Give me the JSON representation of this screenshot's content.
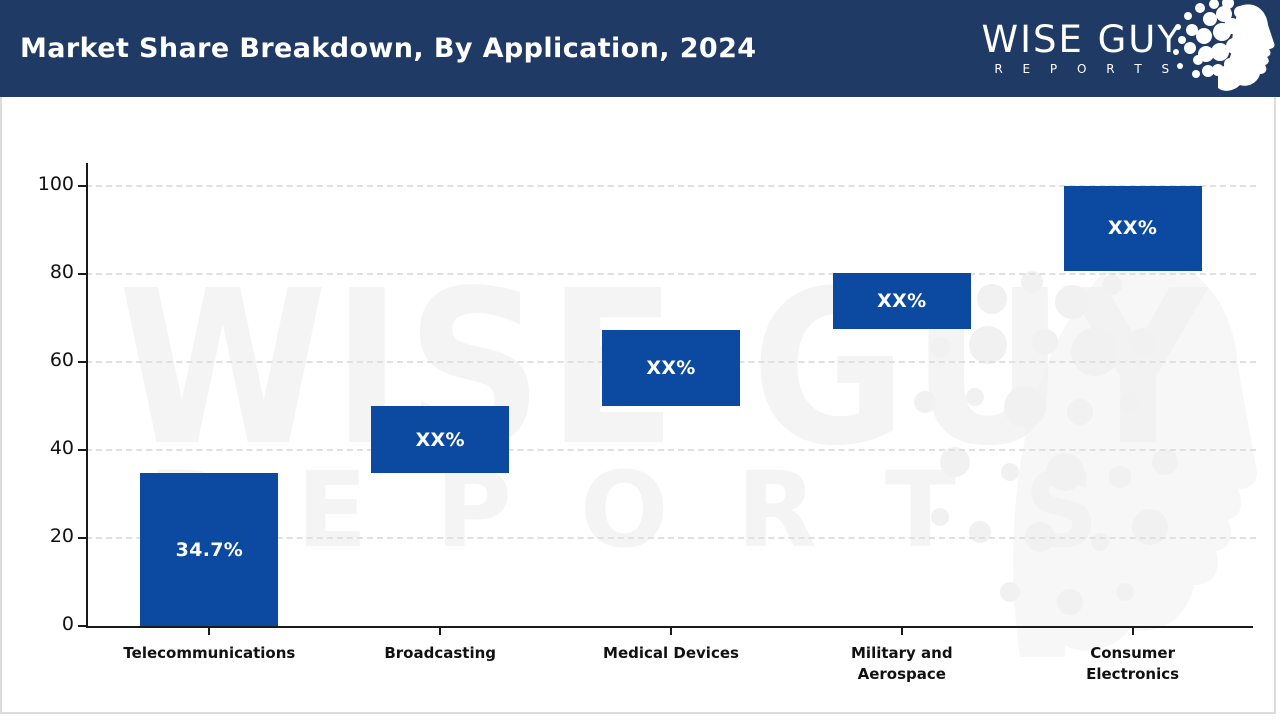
{
  "header": {
    "title": "Market Share Breakdown, By Application, 2024",
    "logo_line1": "WISE GUY",
    "logo_line2": "R E P O R T S"
  },
  "watermark": {
    "line1": "WISE GUY",
    "line2": "R E P O R T S"
  },
  "colors": {
    "header_bg": "#203a66",
    "header_text": "#ffffff",
    "bar": "#0c4aa2",
    "bar_label": "#ffffff",
    "axis": "#1a1a1a",
    "gridline": "#e0e0e0",
    "watermark": "#f4f4f4"
  },
  "chart_data": {
    "type": "bar",
    "subtype": "floating_segment_waterfall",
    "title": "Market Share Breakdown, By Application, 2024",
    "categories": [
      "Telecommunications",
      "Broadcasting",
      "Medical Devices",
      "Military and\nAerospace",
      "Consumer\nElectronics"
    ],
    "segments": [
      {
        "category": "Telecommunications",
        "from": 0,
        "to": 34.7,
        "label": "34.7%"
      },
      {
        "category": "Broadcasting",
        "from": 34.7,
        "to": 49.9,
        "label": "XX%"
      },
      {
        "category": "Medical Devices",
        "from": 49.9,
        "to": 67.3,
        "label": "XX%"
      },
      {
        "category": "Military and Aerospace",
        "from": 67.5,
        "to": 80.2,
        "label": "XX%"
      },
      {
        "category": "Consumer Electronics",
        "from": 80.7,
        "to": 100,
        "label": "XX%"
      }
    ],
    "xlabel": "",
    "ylabel": "",
    "ylim": [
      0,
      100
    ],
    "yticks": [
      0,
      20,
      40,
      60,
      80,
      100
    ],
    "grid": "horizontal_dashed",
    "legend": "none"
  }
}
